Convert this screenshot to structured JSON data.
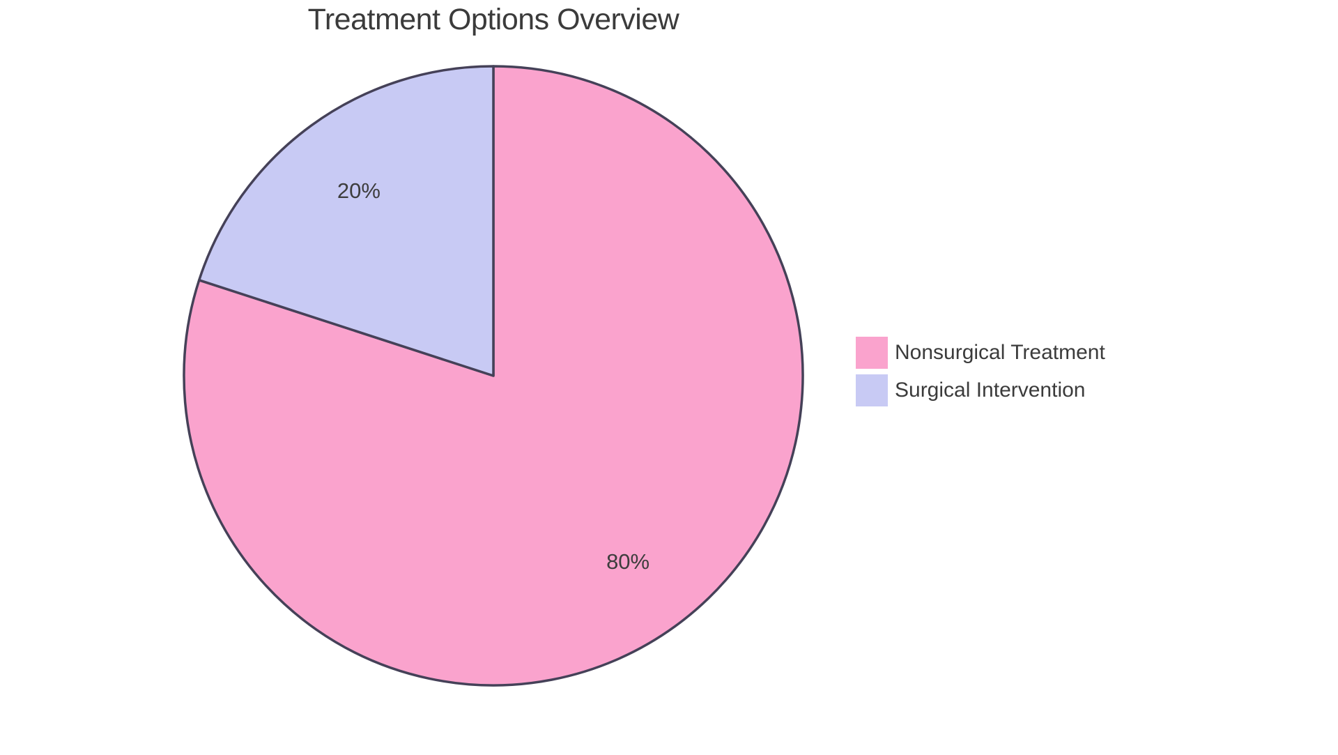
{
  "chart_data": {
    "type": "pie",
    "title": "Treatment Options Overview",
    "labels": [
      "Nonsurgical Treatment",
      "Surgical Intervention"
    ],
    "values": [
      80,
      20
    ],
    "percent_labels": [
      "80%",
      "20%"
    ],
    "colors": [
      "#FAA3CD",
      "#C8CAF4"
    ],
    "slice_border_color": "#454158",
    "label_text_color": "#3D3D3D",
    "title_color": "#3B3B3B",
    "start_angle": "top",
    "direction": "clockwise",
    "legend_position": "right",
    "background_color": "#FFFFFF"
  }
}
